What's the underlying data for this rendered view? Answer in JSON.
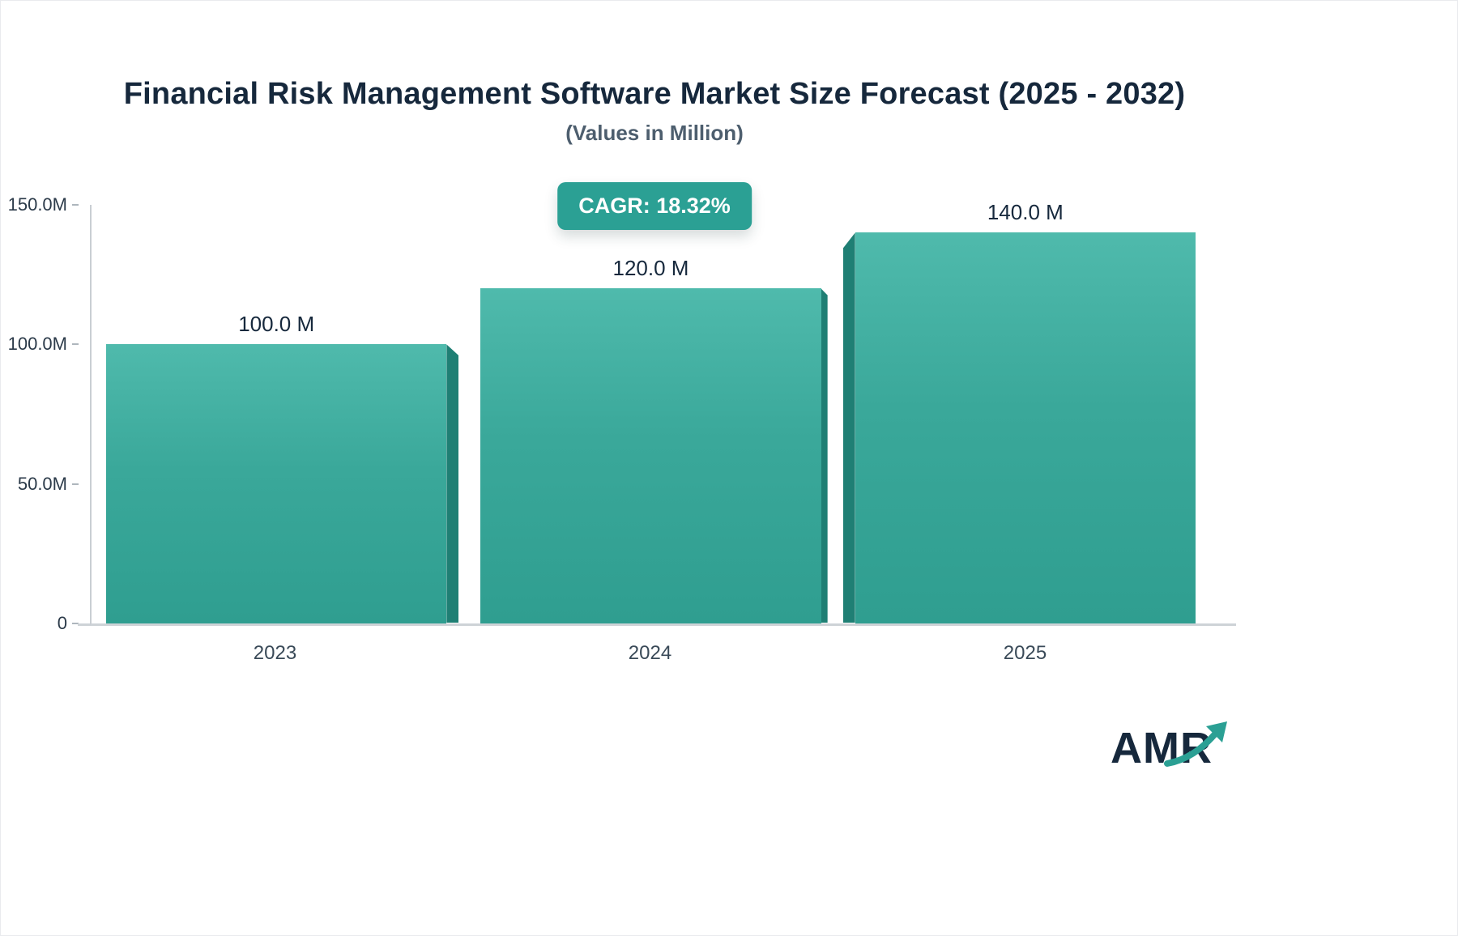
{
  "title": "Financial Risk Management Software Market Size Forecast (2025 - 2032)",
  "subtitle": "(Values in Million)",
  "badge": {
    "label": "CAGR: 18.32%"
  },
  "logo": {
    "text": "AMR"
  },
  "colors": {
    "accent_teal": "#2ba094",
    "bar_gradient_top": "#4fbaac",
    "bar_gradient_bottom": "#2f9e90",
    "bar_side_shadow": "#1f7f74",
    "title_text": "#16283c",
    "subtitle_text": "#4d5e6e",
    "badge_text": "#ffffff"
  },
  "chart_data": {
    "type": "bar",
    "title": "Financial Risk Management Software Market Size Forecast (2025 - 2032)",
    "subtitle": "(Values in Million)",
    "categories": [
      "2023",
      "2024",
      "2025"
    ],
    "values": [
      100.0,
      120.0,
      140.0
    ],
    "value_labels": [
      "100.0 M",
      "120.0 M",
      "140.0 M"
    ],
    "series_unit": "Million",
    "xlabel": "",
    "ylabel": "",
    "ylim": [
      0,
      150
    ],
    "yticks": [
      {
        "value": 0,
        "label": "0"
      },
      {
        "value": 50,
        "label": "50.0M"
      },
      {
        "value": 100,
        "label": "100.0M"
      },
      {
        "value": 150,
        "label": "150.0M"
      }
    ],
    "grid": false,
    "legend": false,
    "annotations": [
      "CAGR: 18.32%"
    ]
  }
}
